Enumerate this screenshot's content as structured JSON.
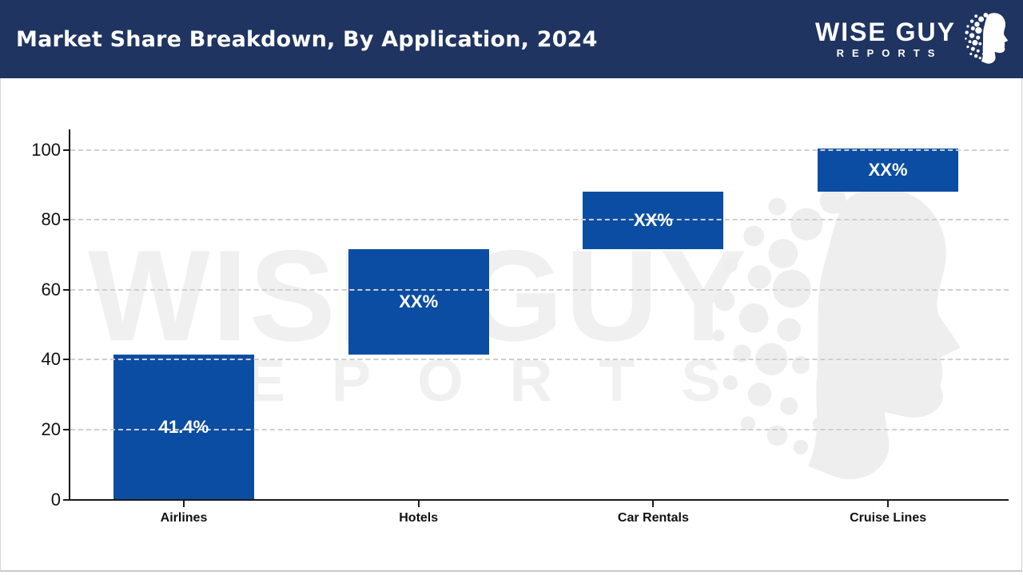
{
  "header": {
    "title": "Market Share Breakdown, By Application, 2024",
    "bg_color": "#1f3460",
    "brand": {
      "wordmark": "WISE GUY",
      "subtext": "REPORTS"
    }
  },
  "watermark": {
    "wordmark": "WISE GUY",
    "subtext": "REPORTS"
  },
  "chart_data": {
    "type": "bar",
    "variant": "waterfall",
    "title": "Market Share Breakdown, By Application, 2024",
    "categories": [
      "Airlines",
      "Hotels",
      "Car Rentals",
      "Cruise Lines"
    ],
    "segments": [
      {
        "category": "Airlines",
        "start": 0,
        "end": 41.4,
        "label": "41.4%"
      },
      {
        "category": "Hotels",
        "start": 41.4,
        "end": 71.5,
        "label": "XX%"
      },
      {
        "category": "Car Rentals",
        "start": 71.5,
        "end": 88.1,
        "label": "XX%"
      },
      {
        "category": "Cruise Lines",
        "start": 88.1,
        "end": 100.3,
        "label": "XX%"
      }
    ],
    "yticks": [
      0,
      20,
      40,
      60,
      80,
      100
    ],
    "ylim": [
      0,
      105.8
    ],
    "xlabel": "",
    "ylabel": "",
    "grid": {
      "horizontal": true,
      "style": "dashed",
      "color": "#cfcfcf",
      "above_bars": true
    },
    "legend": "none",
    "bar_color": "#0b4da2",
    "bar_label_color": "#ffffff",
    "axis_color": "#1a1a1a"
  }
}
